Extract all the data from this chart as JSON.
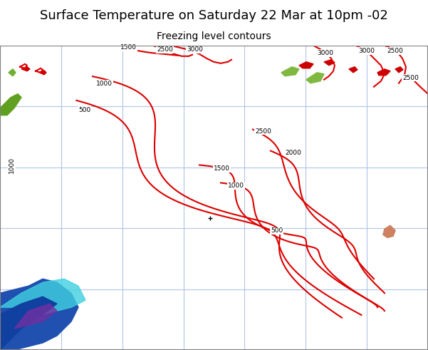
{
  "title": "Surface Temperature on Saturday 22 Mar at 10pm -02",
  "subtitle": "Freezing level contours",
  "title_fontsize": 13,
  "subtitle_fontsize": 10,
  "bg_color": "#dde8f8",
  "map_bg": "#ccd9f0",
  "grid_color": "#b0c4e8",
  "contour_color": "#dd0000",
  "label_fontsize": 8,
  "fig_width": 6.01,
  "fig_height": 4.91,
  "dpi": 100,
  "xlim": [
    0,
    1
  ],
  "ylim": [
    0,
    1
  ]
}
